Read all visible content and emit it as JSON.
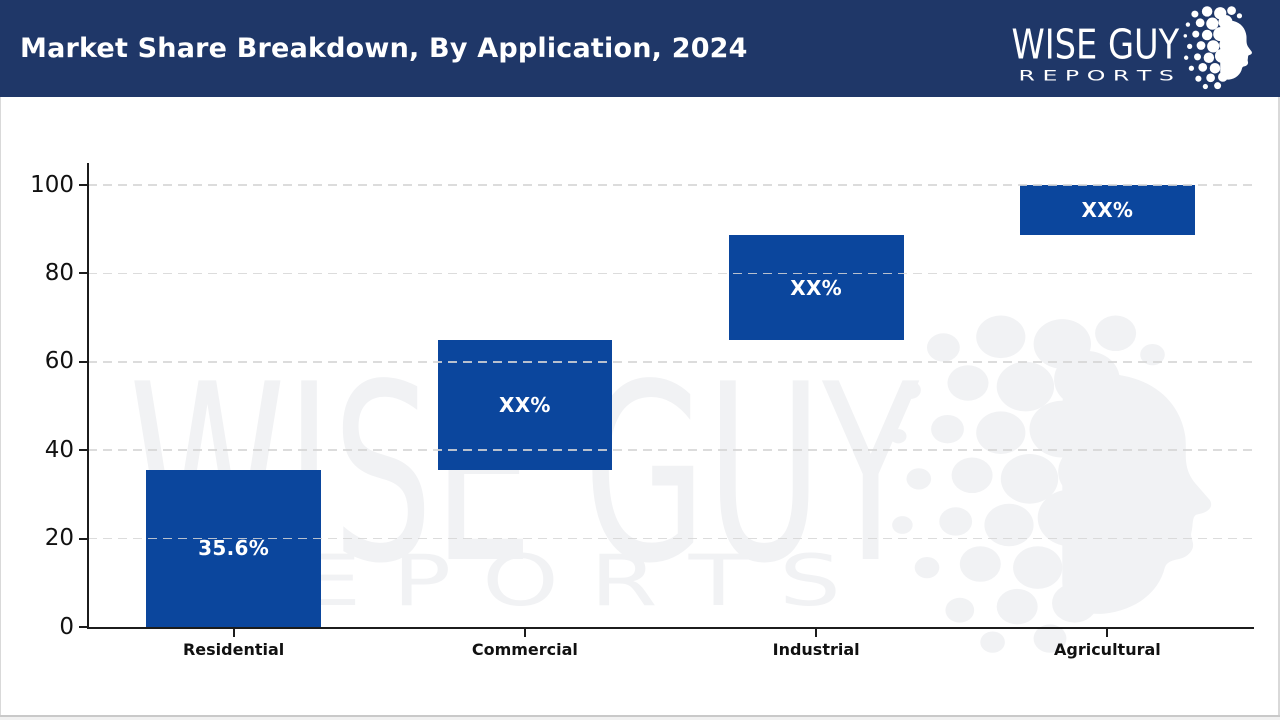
{
  "header": {
    "title": "Market Share Breakdown, By Application, 2024",
    "logo": {
      "line1": "WISE GUY",
      "line2": "R E P O R T S"
    }
  },
  "watermark": {
    "line1": "WISE GUY",
    "line2": "R E P O R T S"
  },
  "chart_data": {
    "type": "bar",
    "subtype": "floating-segment-waterfall",
    "title": "Market Share Breakdown, By Application, 2024",
    "categories": [
      "Residential",
      "Commercial",
      "Industrial",
      "Agricultural"
    ],
    "segments": [
      {
        "category": "Residential",
        "start": 0,
        "end": 35.6,
        "label": "35.6%"
      },
      {
        "category": "Commercial",
        "start": 35.6,
        "end": 65.0,
        "label": "XX%"
      },
      {
        "category": "Industrial",
        "start": 65.0,
        "end": 88.6,
        "label": "XX%"
      },
      {
        "category": "Agricultural",
        "start": 88.6,
        "end": 100.0,
        "label": "XX%"
      }
    ],
    "xlabel": "",
    "ylabel": "",
    "ylim": [
      0,
      105
    ],
    "yticks": [
      0,
      20,
      40,
      60,
      80,
      100
    ],
    "grid": "horizontal-dashed",
    "legend": "none",
    "colors": {
      "bar": "#0b469d",
      "bar_label": "#ffffff",
      "header_bg": "#1f3768",
      "grid": "#dcdcdc",
      "axis": "#1c1c1c",
      "watermark": "#f1f2f4"
    }
  }
}
